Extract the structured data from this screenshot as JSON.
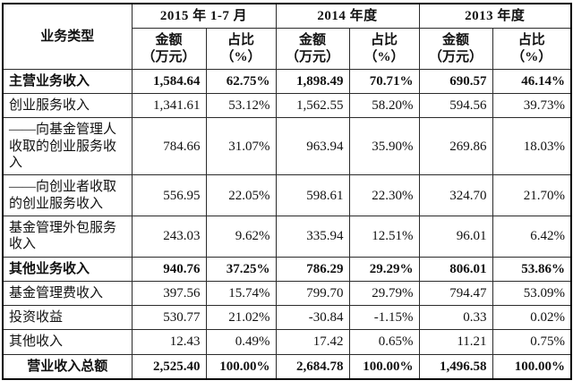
{
  "colors": {
    "background": "#ffffff",
    "text": "#111111",
    "grid_line": "#2b2b2b",
    "outer_border": "#000000"
  },
  "table": {
    "header": {
      "business_type": "业务类型",
      "col_groups": [
        {
          "label": "2015 年 1-7 月"
        },
        {
          "label": "2014 年度"
        },
        {
          "label": "2013 年度"
        }
      ],
      "sub_amount_line1": "金额",
      "sub_amount_line2": "（万元）",
      "sub_ratio_line1": "占比",
      "sub_ratio_line2": "（%）"
    },
    "rows": [
      {
        "label": "主营业务收入",
        "bold": true,
        "total": false,
        "cells": [
          "1,584.64",
          "62.75%",
          "1,898.49",
          "70.71%",
          "690.57",
          "46.14%"
        ]
      },
      {
        "label": "创业服务收入",
        "bold": false,
        "total": false,
        "cells": [
          "1,341.61",
          "53.12%",
          "1,562.55",
          "58.20%",
          "594.56",
          "39.73%"
        ]
      },
      {
        "label": "——向基金管理人收取的创业服务收入",
        "bold": false,
        "total": false,
        "cells": [
          "784.66",
          "31.07%",
          "963.94",
          "35.90%",
          "269.86",
          "18.03%"
        ]
      },
      {
        "label": "——向创业者收取的创业服务收入",
        "bold": false,
        "total": false,
        "cells": [
          "556.95",
          "22.05%",
          "598.61",
          "22.30%",
          "324.70",
          "21.70%"
        ]
      },
      {
        "label": "基金管理外包服务收入",
        "bold": false,
        "total": false,
        "cells": [
          "243.03",
          "9.62%",
          "335.94",
          "12.51%",
          "96.01",
          "6.42%"
        ]
      },
      {
        "label": "其他业务收入",
        "bold": true,
        "total": false,
        "cells": [
          "940.76",
          "37.25%",
          "786.29",
          "29.29%",
          "806.01",
          "53.86%"
        ]
      },
      {
        "label": "基金管理费收入",
        "bold": false,
        "total": false,
        "cells": [
          "397.56",
          "15.74%",
          "799.70",
          "29.79%",
          "794.47",
          "53.09%"
        ]
      },
      {
        "label": "投资收益",
        "bold": false,
        "total": false,
        "cells": [
          "530.77",
          "21.02%",
          "-30.84",
          "-1.15%",
          "0.33",
          "0.02%"
        ]
      },
      {
        "label": "其他收入",
        "bold": false,
        "total": false,
        "cells": [
          "12.43",
          "0.49%",
          "17.42",
          "0.65%",
          "11.21",
          "0.75%"
        ]
      },
      {
        "label": "营业收入总额",
        "bold": true,
        "total": true,
        "cells": [
          "2,525.40",
          "100.00%",
          "2,684.78",
          "100.00%",
          "1,496.58",
          "100.00%"
        ]
      }
    ]
  }
}
